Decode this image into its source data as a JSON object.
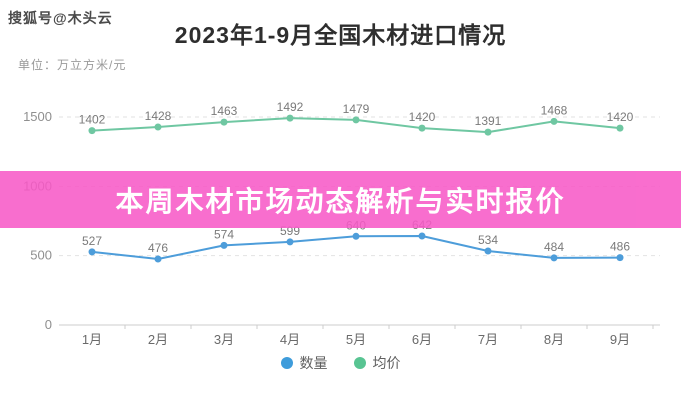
{
  "watermark": "搜狐号@木头云",
  "header": {
    "title": "2023年1-9月全国木材进口情况",
    "unit_label": "单位：万立方米/元"
  },
  "banner": {
    "text": "本周木材市场动态解析与实时报价",
    "background_color": "#f859c7",
    "opacity": 0.87,
    "text_color": "#ffffff"
  },
  "chart_data": {
    "type": "line",
    "title": "2023年1-9月全国木材进口情况",
    "unit": "万立方米/元",
    "categories": [
      "1月",
      "2月",
      "3月",
      "4月",
      "5月",
      "6月",
      "7月",
      "8月",
      "9月"
    ],
    "series": [
      {
        "name": "数量",
        "color": "#4d9dda",
        "values": [
          527,
          476,
          574,
          599,
          640,
          642,
          534,
          484,
          486
        ]
      },
      {
        "name": "均价",
        "color": "#6fc7a2",
        "values": [
          1402,
          1428,
          1463,
          1492,
          1479,
          1420,
          1391,
          1468,
          1420
        ]
      }
    ],
    "ylim": [
      0,
      1500
    ],
    "yticks": [
      0,
      500,
      1000,
      1500
    ],
    "grid": "dashed-horizontal",
    "data_labels": true,
    "legend_position": "bottom",
    "legend": [
      {
        "label": "数量",
        "color": "#3e9cdb"
      },
      {
        "label": "均价",
        "color": "#58c492"
      }
    ]
  },
  "colors": {
    "grid_line": "#e2e2e2",
    "axis_line": "#cccccc",
    "tick_label": "#8f8f8f",
    "data_label": "#7a7a7a",
    "x_label": "#6a6a6a"
  }
}
